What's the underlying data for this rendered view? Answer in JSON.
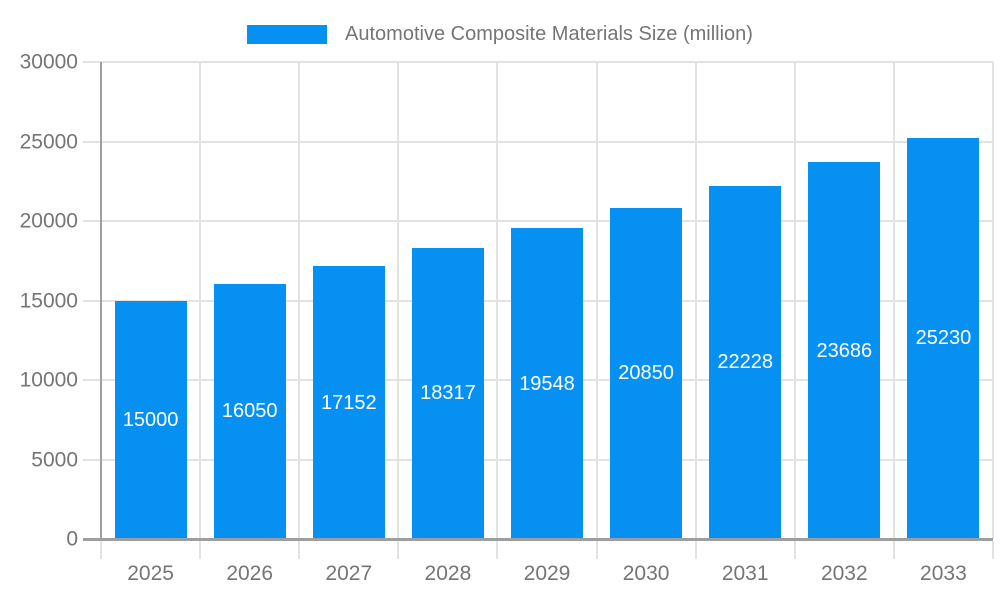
{
  "chart_data": {
    "type": "bar",
    "title": "Automotive Composite Materials Size (million)",
    "categories": [
      "2025",
      "2026",
      "2027",
      "2028",
      "2029",
      "2030",
      "2031",
      "2032",
      "2033"
    ],
    "values": [
      15000,
      16050,
      17152,
      18317,
      19548,
      20850,
      22228,
      23686,
      25230
    ],
    "data_labels": [
      "15000",
      "16050",
      "17152",
      "18317",
      "19548",
      "20850",
      "22228",
      "23686",
      "25230"
    ],
    "data_label_position": "inside-center",
    "xlabel": "",
    "ylabel": "",
    "ylim": [
      0,
      30000
    ],
    "yticks": [
      0,
      5000,
      10000,
      15000,
      20000,
      25000,
      30000
    ],
    "ytick_labels": [
      "0",
      "5000",
      "10000",
      "15000",
      "20000",
      "25000",
      "30000"
    ],
    "grid": "on",
    "legend_position": "top-center",
    "colors": {
      "bar": "#0691F2",
      "bar_label_text": "#FFFFFF",
      "axis_text": "#757575",
      "legend_text": "#757575",
      "gridline": "#E2E2E2",
      "axis_line": "#9E9E9E",
      "background": "#FFFFFF"
    }
  }
}
